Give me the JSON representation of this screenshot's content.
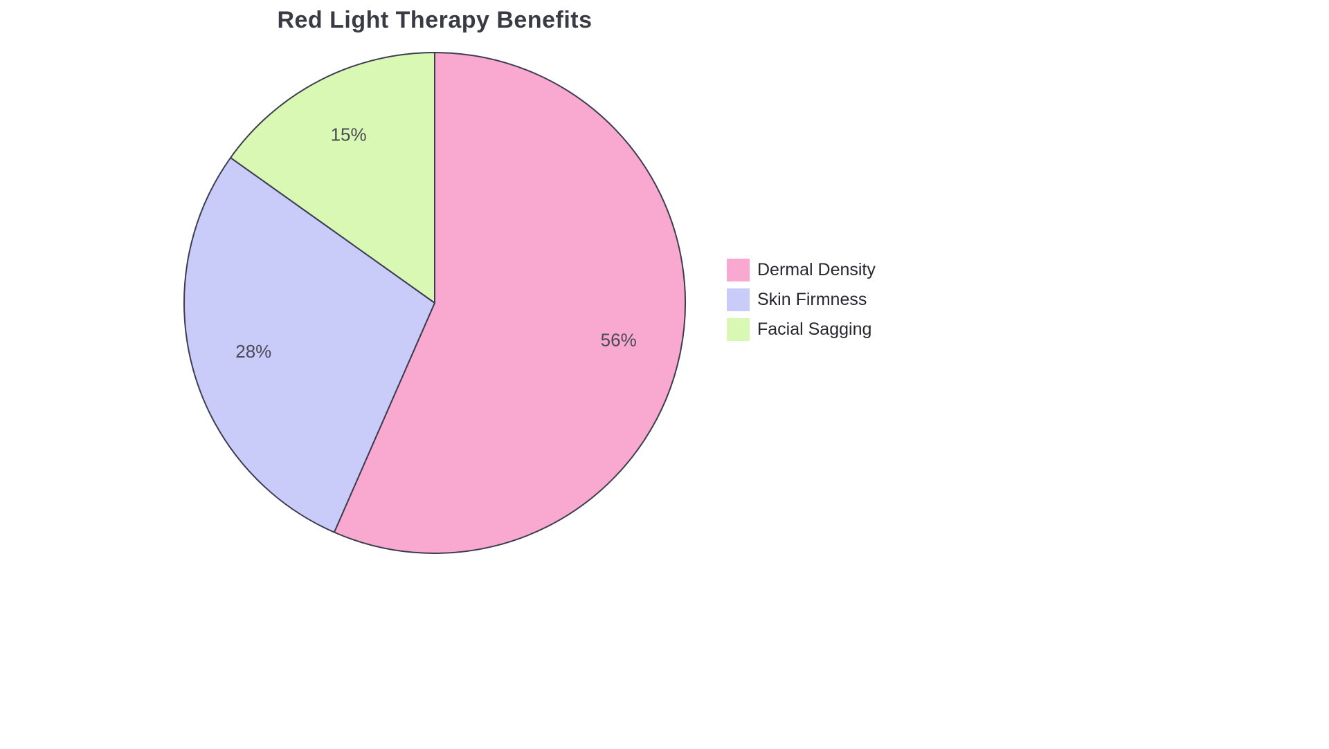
{
  "page": {
    "background_color": "#FFFFFF"
  },
  "chart_data": {
    "type": "pie",
    "title": "Red Light Therapy Benefits",
    "labels": [
      "Dermal Density",
      "Skin Firmness",
      "Facial Sagging"
    ],
    "values": [
      56,
      28,
      15
    ],
    "percent_labels": [
      "56%",
      "28%",
      "15%"
    ],
    "colors": [
      "#F9A8CF",
      "#C9CBF8",
      "#D9F8B4"
    ],
    "stroke_color": "#3C3C50",
    "stroke_width": 2,
    "label_color": "#4A4A57",
    "title_color": "#3A3A44",
    "start_angle": "top",
    "direction": "clockwise",
    "label_radius_fraction": 0.75,
    "legend_position": "right",
    "legend_entries": [
      "Dermal Density",
      "Skin Firmness",
      "Facial Sagging"
    ]
  }
}
